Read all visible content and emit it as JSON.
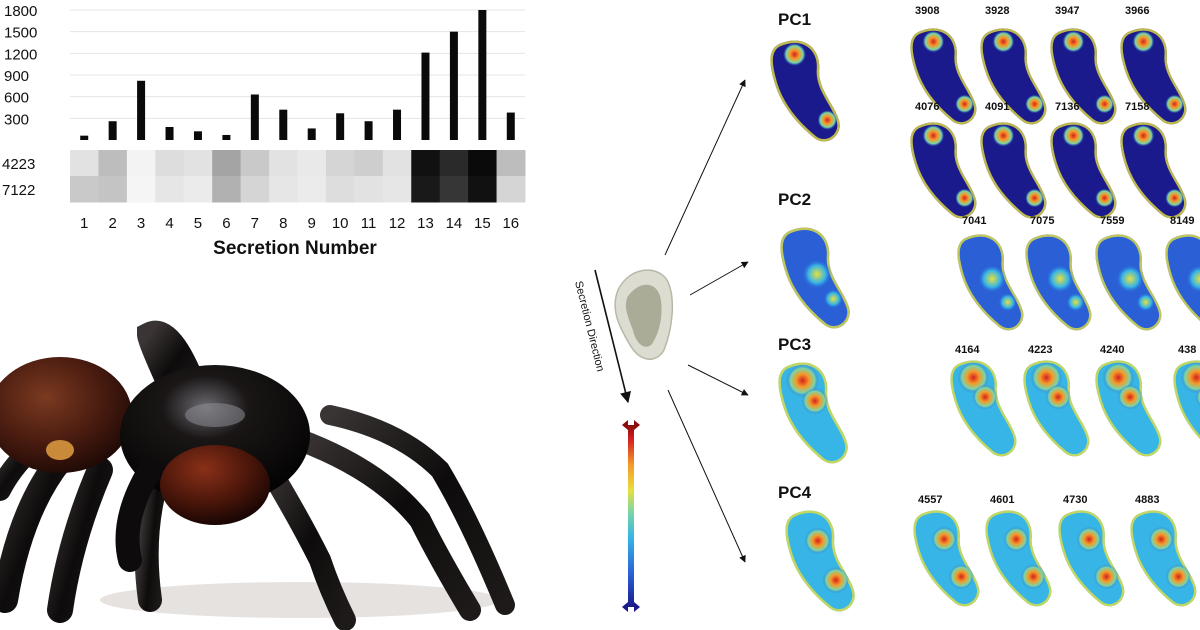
{
  "chart_data": {
    "type": "bar",
    "categories": [
      "1",
      "2",
      "3",
      "4",
      "5",
      "6",
      "7",
      "8",
      "9",
      "10",
      "11",
      "12",
      "13",
      "14",
      "15",
      "16"
    ],
    "values": [
      60,
      260,
      820,
      180,
      120,
      70,
      630,
      420,
      160,
      370,
      260,
      420,
      1210,
      1500,
      1800,
      380
    ],
    "y_ticks": [
      "1800",
      "1500",
      "1200",
      "900",
      "600",
      "300"
    ],
    "ylim": [
      0,
      1800
    ],
    "xlabel": "Secretion Number",
    "grid": true,
    "heatmap": {
      "rows": [
        "4223",
        "7122"
      ],
      "intensity": [
        [
          0.1,
          0.25,
          0.03,
          0.12,
          0.1,
          0.35,
          0.2,
          0.1,
          0.07,
          0.15,
          0.18,
          0.1,
          0.95,
          0.85,
          0.98,
          0.25
        ],
        [
          0.2,
          0.22,
          0.02,
          0.08,
          0.06,
          0.3,
          0.15,
          0.08,
          0.06,
          0.12,
          0.1,
          0.08,
          0.92,
          0.8,
          0.95,
          0.15
        ]
      ]
    }
  },
  "diagram": {
    "direction_label": "Secretion Direction",
    "colors": {
      "colormap": [
        "#1a1a8c",
        "#2a5fd6",
        "#36b5e6",
        "#7ad6a6",
        "#e6e040",
        "#f59a28",
        "#d42020",
        "#8b0b0b"
      ]
    },
    "components": [
      {
        "name": "PC1",
        "mz": [
          "3908",
          "3928",
          "3947",
          "3966",
          "4076",
          "4091",
          "7136",
          "7158"
        ]
      },
      {
        "name": "PC2",
        "mz": [
          "7041",
          "7075",
          "7559",
          "8149"
        ]
      },
      {
        "name": "PC3",
        "mz": [
          "4164",
          "4223",
          "4240",
          "438"
        ]
      },
      {
        "name": "PC4",
        "mz": [
          "4557",
          "4601",
          "4730",
          "4883"
        ]
      }
    ]
  }
}
